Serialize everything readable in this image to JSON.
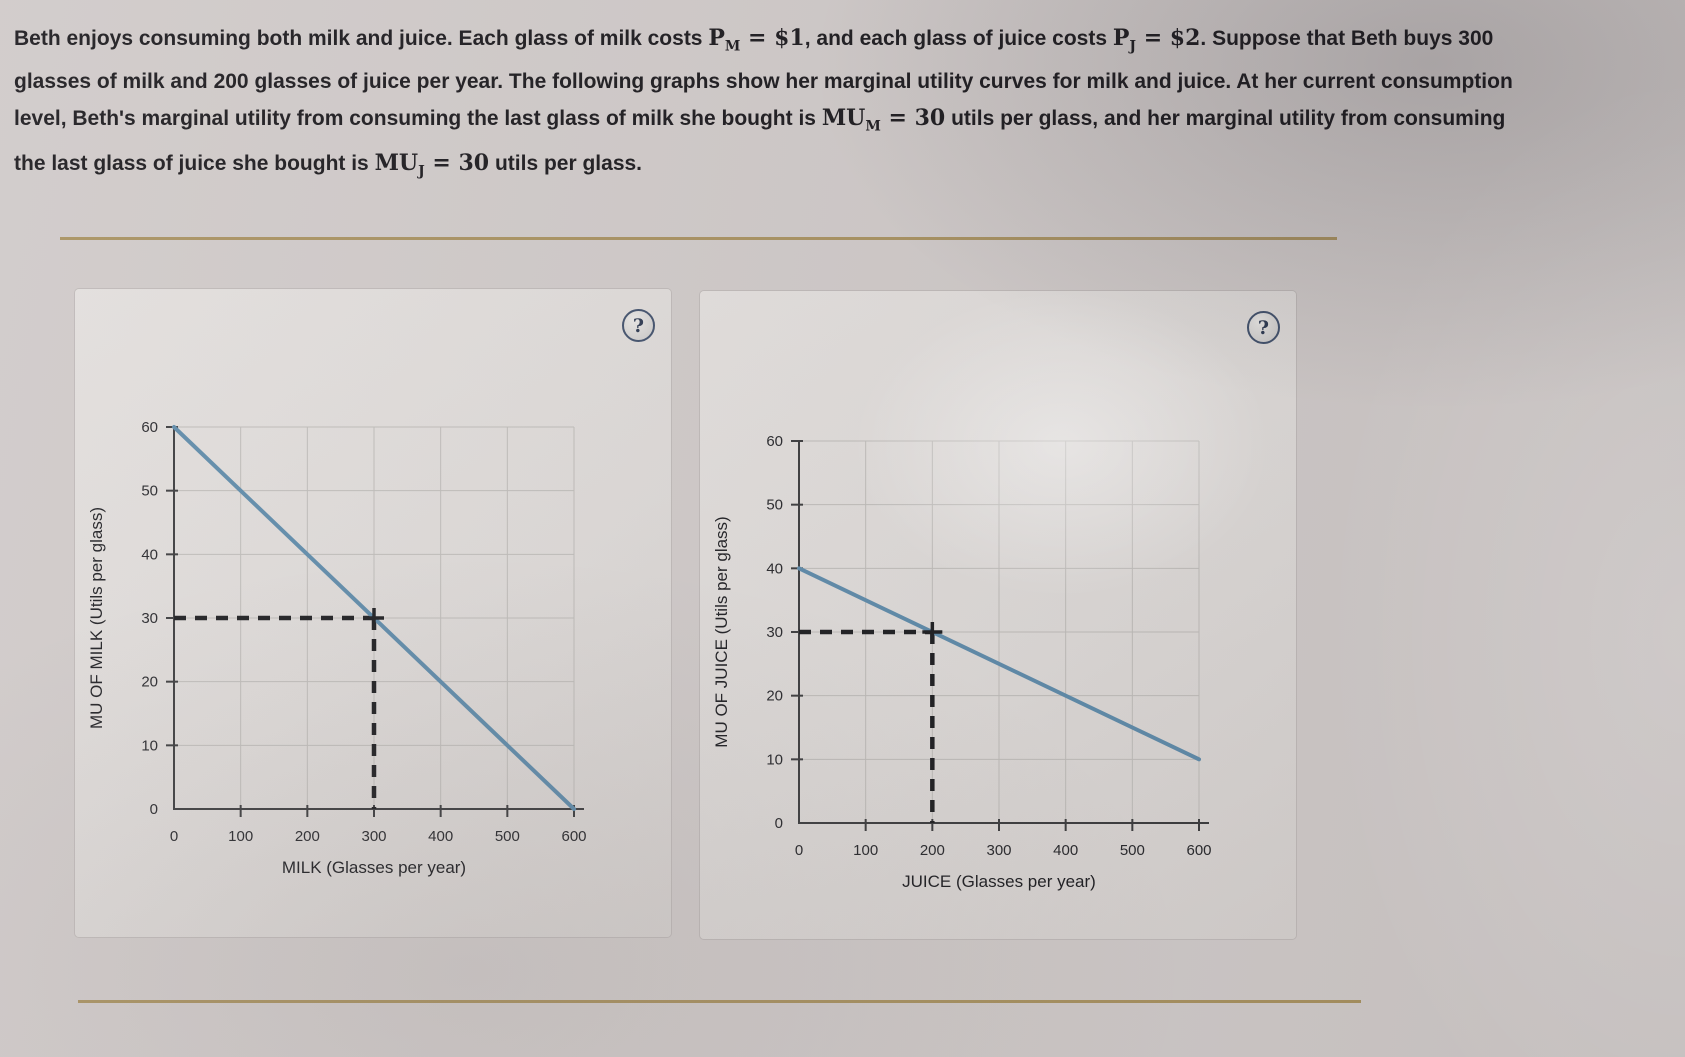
{
  "problem": {
    "seg1": "Beth enjoys consuming both milk and juice. Each glass of milk costs ",
    "pm": {
      "base": "P",
      "sub": "M",
      "value": " = $1"
    },
    "seg2": ", and each glass of juice costs ",
    "pj": {
      "base": "P",
      "sub": "J",
      "value": " = $2"
    },
    "seg3": ". Suppose that Beth buys 300 glasses of milk and 200 glasses of juice per year. The following graphs show her marginal utility curves for milk and juice. At her current consumption level, Beth's marginal utility from consuming the last glass of milk she bought is ",
    "mum": {
      "base": "MU",
      "sub": "M",
      "value": " = 30"
    },
    "seg4": " utils per glass, and her marginal utility from consuming the last glass of juice she bought is ",
    "muj": {
      "base": "MU",
      "sub": "J",
      "value": " = 30"
    },
    "seg5": " utils per glass."
  },
  "panels": [
    {
      "help_icon": "?"
    },
    {
      "help_icon": "?"
    }
  ],
  "colors": {
    "separator": "#a7905f",
    "curve": "#5d89a8",
    "dashed": "#1b1b1e",
    "axis": "#3a3a3c",
    "grid": "#bdbab7"
  },
  "chart_data": [
    {
      "type": "line",
      "title": "",
      "xlabel": "MILK (Glasses per year)",
      "ylabel": "MU OF MILK (Utils per glass)",
      "xlim": [
        0,
        600
      ],
      "ylim": [
        0,
        60
      ],
      "xticks": [
        0,
        100,
        200,
        300,
        400,
        500,
        600
      ],
      "yticks": [
        0,
        10,
        20,
        30,
        40,
        50,
        60
      ],
      "grid": true,
      "legend": false,
      "series": [
        {
          "name": "MU of milk",
          "x": [
            0,
            600
          ],
          "y": [
            60,
            0
          ],
          "color": "#5d89a8"
        }
      ],
      "reference_point": {
        "x": 300,
        "y": 30
      },
      "dashed_lines": [
        {
          "x": [
            0,
            300
          ],
          "y": [
            30,
            30
          ]
        },
        {
          "x": [
            300,
            300
          ],
          "y": [
            30,
            0
          ]
        }
      ]
    },
    {
      "type": "line",
      "title": "",
      "xlabel": "JUICE (Glasses per year)",
      "ylabel": "MU OF JUICE (Utils per glass)",
      "xlim": [
        0,
        600
      ],
      "ylim": [
        0,
        60
      ],
      "xticks": [
        0,
        100,
        200,
        300,
        400,
        500,
        600
      ],
      "yticks": [
        0,
        10,
        20,
        30,
        40,
        50,
        60
      ],
      "grid": true,
      "legend": false,
      "series": [
        {
          "name": "MU of juice",
          "x": [
            0,
            600
          ],
          "y": [
            40,
            10
          ],
          "color": "#5d89a8"
        }
      ],
      "reference_point": {
        "x": 200,
        "y": 30
      },
      "dashed_lines": [
        {
          "x": [
            0,
            200
          ],
          "y": [
            30,
            30
          ]
        },
        {
          "x": [
            200,
            200
          ],
          "y": [
            30,
            0
          ]
        }
      ]
    }
  ]
}
